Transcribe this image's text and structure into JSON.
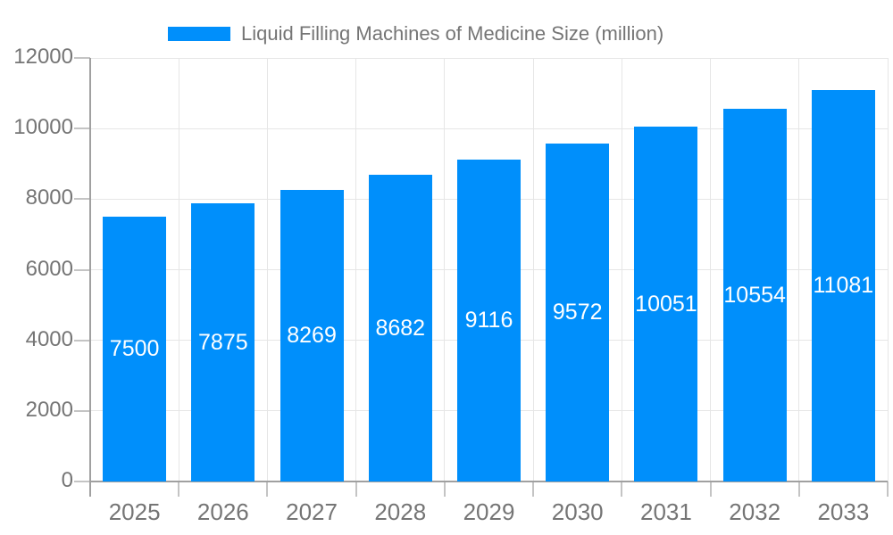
{
  "chart_data": {
    "type": "bar",
    "title": "Liquid Filling Machines of Medicine Size (million)",
    "legend_position": "top",
    "categories": [
      "2025",
      "2026",
      "2027",
      "2028",
      "2029",
      "2030",
      "2031",
      "2032",
      "2033"
    ],
    "series": [
      {
        "name": "Liquid Filling Machines of Medicine Size (million)",
        "values": [
          7500,
          7875,
          8269,
          8682,
          9116,
          9572,
          10051,
          10554,
          11081
        ],
        "color": "#008FFB"
      }
    ],
    "xlabel": "",
    "ylabel": "",
    "ylim": [
      0,
      12000
    ],
    "yticks": [
      0,
      2000,
      4000,
      6000,
      8000,
      10000,
      12000
    ],
    "grid": true,
    "value_labels_inside_bars": true
  },
  "colors": {
    "bar": "#008FFB",
    "bar_value_text": "#ffffff",
    "axis_text": "#757575",
    "gridline": "#e6e6e6",
    "axis_line": "#a0a0a0",
    "tick": "#c4c4c4",
    "background": "#ffffff"
  }
}
